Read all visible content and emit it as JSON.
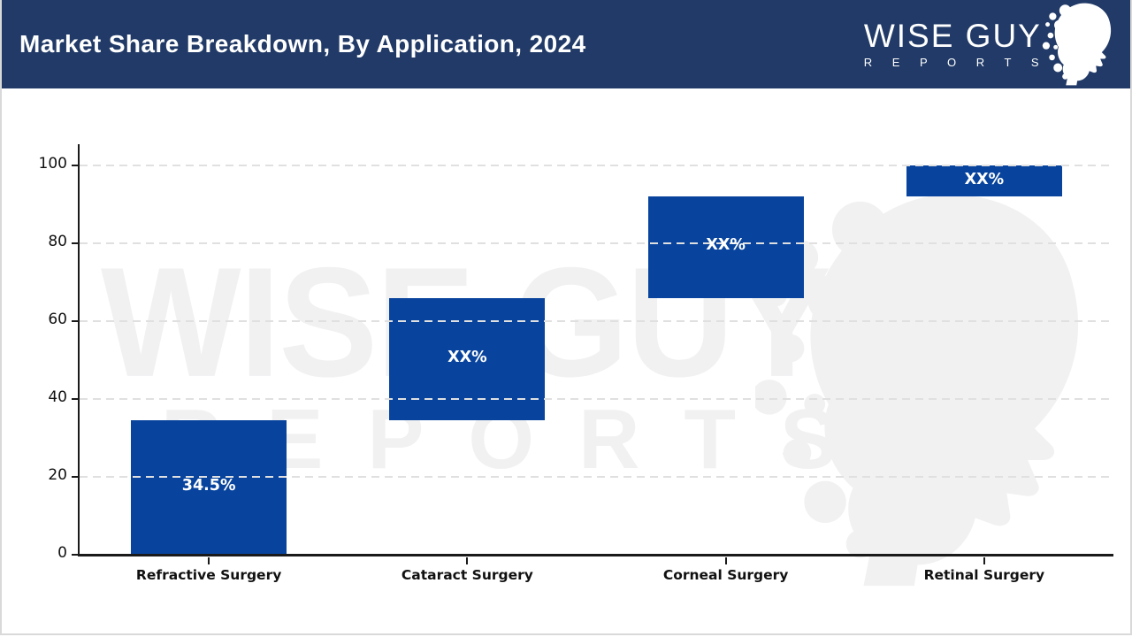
{
  "header": {
    "title": "Market Share Breakdown, By Application, 2024",
    "logo": {
      "line1": "WISE GUY",
      "line2": "R E P O R T S",
      "face_icon": "dotted-head-profile"
    }
  },
  "watermark": {
    "line1": "WISE GUY",
    "line2": "REPORTS",
    "face_icon": "dotted-head-profile"
  },
  "colors": {
    "header_bg": "#213a67",
    "bar": "#08449d",
    "grid": "#e0e0e0",
    "axis": "#1a1a1a",
    "watermark": "#f1f1f2",
    "title_text": "#ffffff",
    "bar_label_text": "#ffffff"
  },
  "chart_data": {
    "type": "bar",
    "subtype": "waterfall",
    "title": "Market Share Breakdown, By Application, 2024",
    "xlabel": "",
    "ylabel": "",
    "categories": [
      "Refractive Surgery",
      "Cataract Surgery",
      "Corneal Surgery",
      "Retinal Surgery"
    ],
    "bars": [
      {
        "category": "Refractive Surgery",
        "label": "34.5%",
        "start": 0,
        "end": 34.5
      },
      {
        "category": "Cataract Surgery",
        "label": "XX%",
        "start": 34.5,
        "end": 66
      },
      {
        "category": "Corneal Surgery",
        "label": "XX%",
        "start": 66,
        "end": 92
      },
      {
        "category": "Retinal Surgery",
        "label": "XX%",
        "start": 92,
        "end": 100
      }
    ],
    "yticks": [
      0,
      20,
      40,
      60,
      80,
      100
    ],
    "ylim": [
      0,
      105
    ],
    "grid": "horizontal-dashed",
    "legend": "none"
  }
}
